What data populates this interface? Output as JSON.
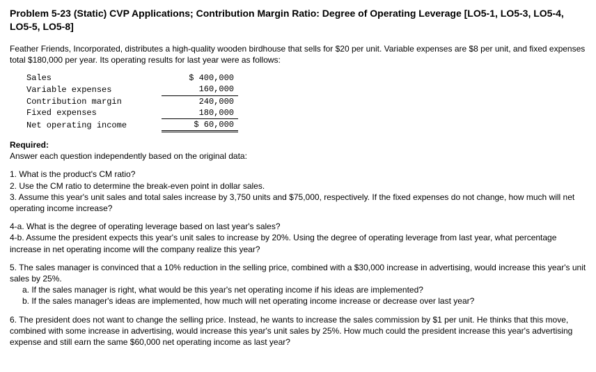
{
  "title": "Problem 5-23 (Static) CVP Applications; Contribution Margin Ratio: Degree of Operating Leverage [LO5-1, LO5-3, LO5-4, LO5-5, LO5-8]",
  "intro": "Feather Friends, Incorporated, distributes a high-quality wooden birdhouse that sells for $20 per unit. Variable expenses are $8 per unit, and fixed expenses total $180,000 per year. Its operating results for last year were as follows:",
  "table": {
    "rows": [
      {
        "label": "Sales",
        "value": "$ 400,000",
        "underline": "none"
      },
      {
        "label": "Variable expenses",
        "value": "160,000",
        "underline": "single"
      },
      {
        "label": "Contribution margin",
        "value": "240,000",
        "underline": "none"
      },
      {
        "label": "Fixed expenses",
        "value": "180,000",
        "underline": "single"
      },
      {
        "label": "Net operating income",
        "value": "$ 60,000",
        "underline": "double"
      }
    ]
  },
  "required": {
    "label": "Required:",
    "text": "Answer each question independently based on the original data:"
  },
  "q1": "1. What is the product's CM ratio?",
  "q2": "2. Use the CM ratio to determine the break-even point in dollar sales.",
  "q3": "3. Assume this year's unit sales and total sales increase by 3,750 units and $75,000, respectively. If the fixed expenses do not change, how much will net operating income increase?",
  "q4a": "4-a. What is the degree of operating leverage based on last year's sales?",
  "q4b": "4-b. Assume the president expects this year's unit sales to increase by 20%. Using the degree of operating leverage from last year, what percentage increase in net operating income will the company realize this year?",
  "q5": "5. The sales manager is convinced that a 10% reduction in the selling price, combined with a $30,000 increase in advertising, would increase this year's unit sales by 25%.",
  "q5a": "a. If the sales manager is right, what would be this year's net operating income if his ideas are implemented?",
  "q5b": "b. If the sales manager's ideas are implemented, how much will net operating income increase or decrease over last year?",
  "q6": "6. The president does not want to change the selling price. Instead, he wants to increase the sales commission by $1 per unit. He thinks that this move, combined with some increase in advertising, would increase this year's unit sales by 25%. How much could the president increase this year's advertising expense and still earn the same $60,000 net operating income as last year?"
}
